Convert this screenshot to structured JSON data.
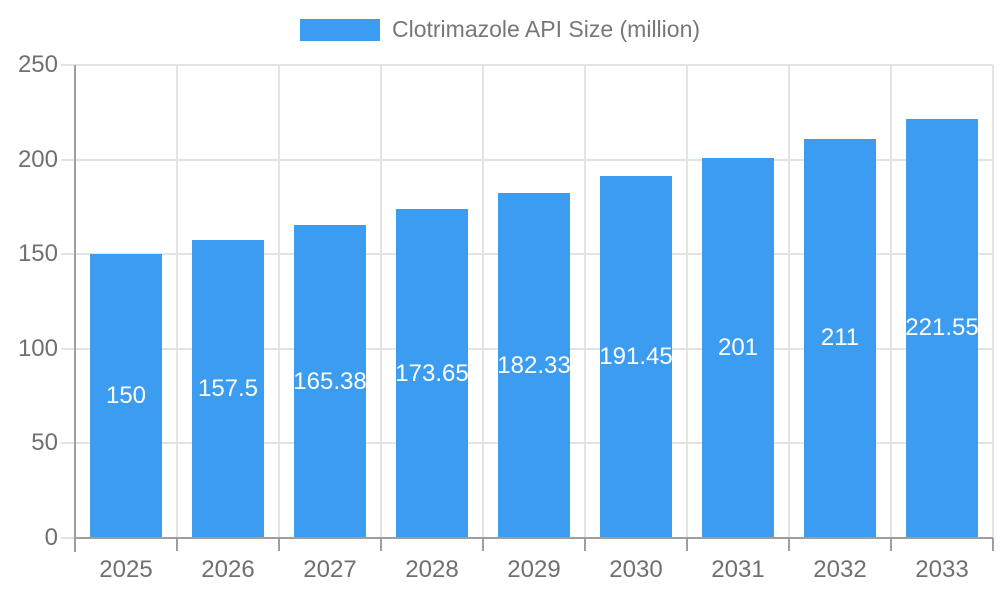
{
  "chart_data": {
    "type": "bar",
    "title": "",
    "xlabel": "",
    "ylabel": "",
    "legend": {
      "label": "Clotrimazole API Size (million)",
      "position": "top"
    },
    "categories": [
      "2025",
      "2026",
      "2027",
      "2028",
      "2029",
      "2030",
      "2031",
      "2032",
      "2033"
    ],
    "series": [
      {
        "name": "Clotrimazole API Size (million)",
        "values": [
          150,
          157.5,
          165.38,
          173.65,
          182.33,
          191.45,
          201,
          211,
          221.55
        ]
      }
    ],
    "value_labels": [
      "150",
      "157.5",
      "165.38",
      "173.65",
      "182.33",
      "191.45",
      "201",
      "211",
      "221.55"
    ],
    "ylim": [
      0,
      250
    ],
    "yticks": [
      0,
      50,
      100,
      150,
      200,
      250
    ],
    "ytick_labels": [
      "0",
      "50",
      "100",
      "150",
      "200",
      "250"
    ],
    "grid": true,
    "colors": {
      "bar": "#3B9CF0",
      "axis_line": "#9E9E9E",
      "gridline": "#E3E3E3",
      "tick_label": "#707070",
      "legend_text": "#777777",
      "value_label": "#FFFFFF",
      "background": "#FFFFFF"
    }
  }
}
